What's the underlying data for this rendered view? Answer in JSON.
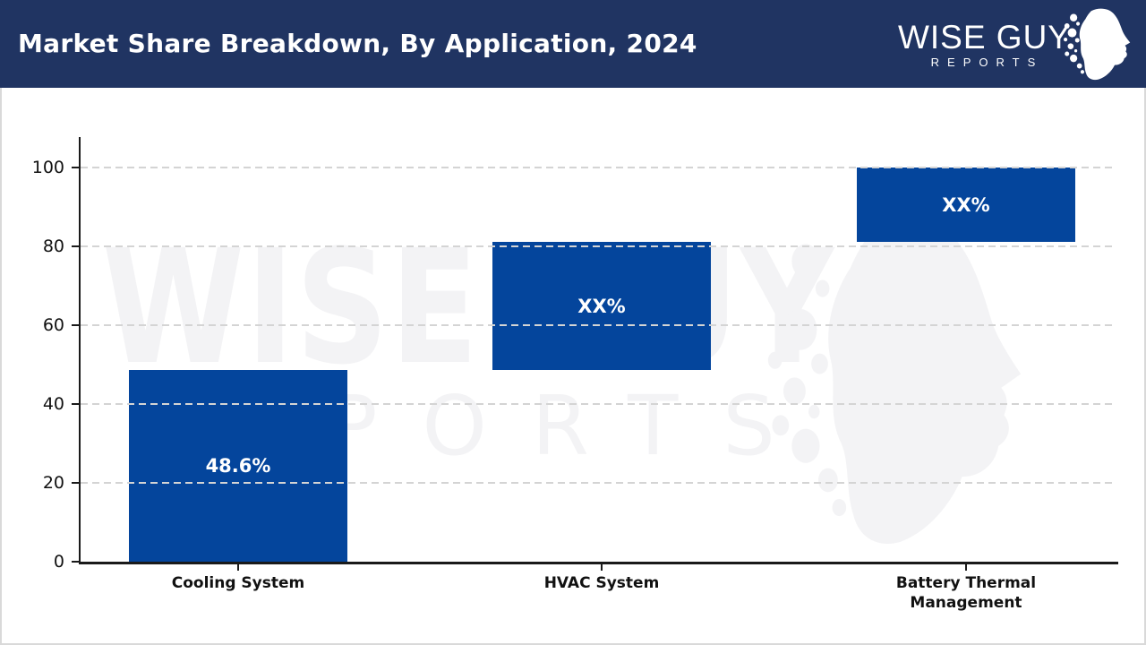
{
  "header": {
    "title": "Market Share Breakdown, By Application, 2024",
    "logo": {
      "line1": "WISE GUY",
      "line2": "REPORTS"
    }
  },
  "watermark": {
    "line1": "WISE GUY",
    "line2": "REPORTS"
  },
  "colors": {
    "header_bg": "#203462",
    "bar": "#04459c",
    "bar_label": "#ffffff",
    "gridline": "#d4d4d4",
    "axis": "#1a1a1a",
    "watermark": "#f3f3f5"
  },
  "chart_data": {
    "type": "bar",
    "subtype": "waterfall",
    "title": "Market Share Breakdown, By Application, 2024",
    "categories": [
      "Cooling System",
      "HVAC System",
      "Battery Thermal Management"
    ],
    "segments": [
      {
        "category": "Cooling System",
        "start": 0,
        "end": 48.6,
        "value_label": "48.6%"
      },
      {
        "category": "HVAC System",
        "start": 48.6,
        "end": 81.1,
        "value_label": "XX%"
      },
      {
        "category": "Battery Thermal Management",
        "start": 81.1,
        "end": 100,
        "value_label": "XX%"
      }
    ],
    "y_ticks": [
      0,
      20,
      40,
      60,
      80,
      100
    ],
    "ylim": [
      0,
      107.3
    ],
    "grid": "horizontal-dashed",
    "legend": false,
    "bar_color": "#04459c",
    "bar_label_color": "#ffffff"
  }
}
